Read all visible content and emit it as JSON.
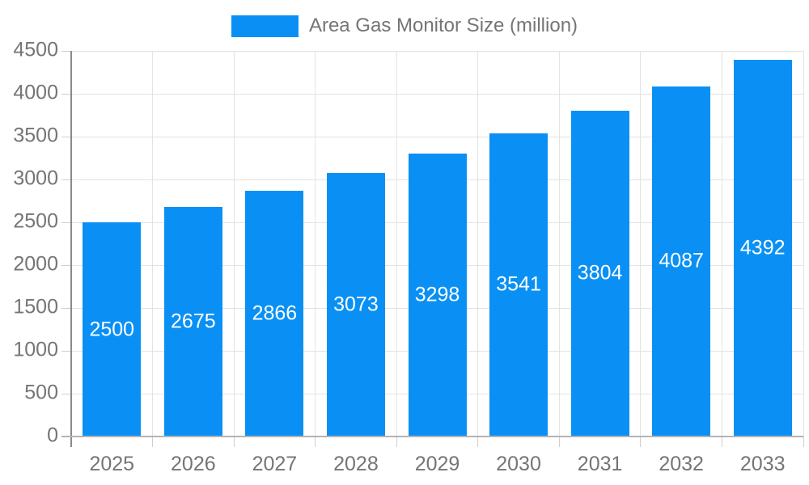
{
  "chart_data": {
    "type": "bar",
    "title": "",
    "legend": "Area Gas Monitor Size (million)",
    "legend_position": "top",
    "categories": [
      "2025",
      "2026",
      "2027",
      "2028",
      "2029",
      "2030",
      "2031",
      "2032",
      "2033"
    ],
    "values": [
      2500,
      2675,
      2866,
      3073,
      3298,
      3541,
      3804,
      4087,
      4392
    ],
    "bar_value_labels": [
      "2500",
      "2675",
      "2866",
      "3073",
      "3298",
      "3541",
      "3804",
      "4087",
      "4392"
    ],
    "xlabel": "",
    "ylabel": "",
    "ylim": [
      0,
      4500
    ],
    "yticks": [
      0,
      500,
      1000,
      1500,
      2000,
      2500,
      3000,
      3500,
      4000,
      4500
    ],
    "grid": true,
    "colors": {
      "bar": "#0a90f4",
      "bar_value_text": "#ffffff",
      "axis_text": "#757575",
      "legend_text": "#757575",
      "grid_line": "#e3e3e3",
      "y_axis_line": "#8a8a8a",
      "x_axis_line": "#b3b3b3",
      "tick_mark": "#cfcfcf",
      "background": "#ffffff"
    }
  }
}
